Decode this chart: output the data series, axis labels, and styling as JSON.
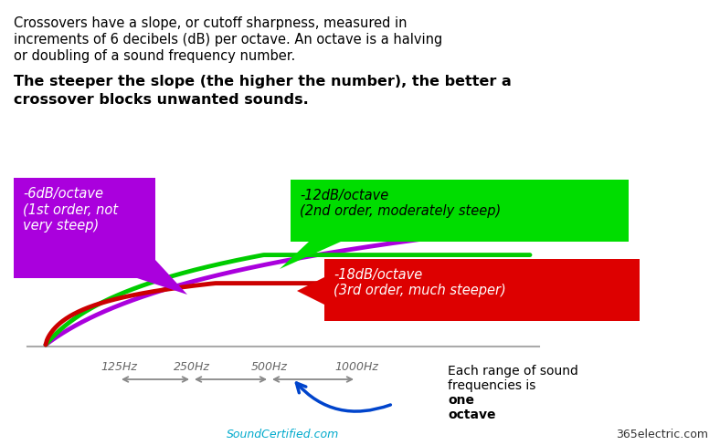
{
  "bg_color": "#ffffff",
  "top_text_line1": "Crossovers have a slope, or cutoff sharpness, measured in",
  "top_text_line2": "increments of 6 decibels (dB) per octave. An octave is a halving",
  "top_text_line3": "or doubling of a sound frequency number.",
  "bold_text_line1": "The steeper the slope (the higher the number), the better a",
  "bold_text_line2": "crossover blocks unwanted sounds.",
  "purple_label": "-6dB/octave\n(1st order, not\nvery steep)",
  "purple_box_color": "#aa00dd",
  "purple_text_color": "#ffffff",
  "green_label": "-12dB/octave\n(2nd order, moderately steep)",
  "green_box_color": "#00dd00",
  "green_text_color": "#000000",
  "red_label": "-18dB/octave\n(3rd order, much steeper)",
  "red_box_color": "#dd0000",
  "red_text_color": "#ffffff",
  "purple_line_color": "#aa00dd",
  "green_line_color": "#00cc00",
  "red_line_color": "#cc0000",
  "freq_labels": [
    "125Hz",
    "250Hz",
    "500Hz",
    "1000Hz"
  ],
  "watermark_left": "SoundCertified.com",
  "watermark_right": "365electric.com",
  "watermark_color": "#00aacc",
  "octave_text1": "Each range of sound\nfrequencies is ",
  "octave_bold": "one\noctave"
}
